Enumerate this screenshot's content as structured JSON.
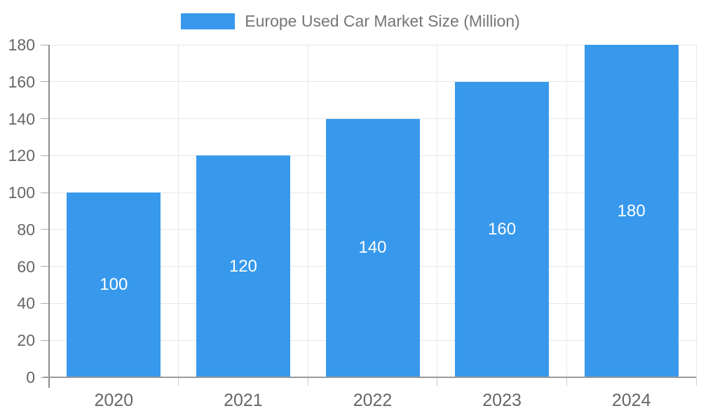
{
  "legend": {
    "label": "Europe Used Car Market Size (Million)"
  },
  "chart_data": {
    "type": "bar",
    "title": "Europe Used Car Market Size (Million)",
    "categories": [
      "2020",
      "2021",
      "2022",
      "2023",
      "2024"
    ],
    "values": [
      100,
      120,
      140,
      160,
      180
    ],
    "series": [
      {
        "name": "Europe Used Car Market Size (Million)",
        "values": [
          100,
          120,
          140,
          160,
          180
        ]
      }
    ],
    "xlabel": "",
    "ylabel": "",
    "ylim": [
      0,
      180
    ],
    "yticks": [
      0,
      20,
      40,
      60,
      80,
      100,
      120,
      140,
      160,
      180
    ],
    "legend_position": "top-center",
    "grid": true,
    "value_labels": "inside-center",
    "colors": {
      "bar": "#3899EC",
      "value_label": "#FFFFFF",
      "axis_text": "#666666",
      "title_text": "#757575",
      "gridline": "#E8E8E8",
      "boundary_tick": "#CCCCCC",
      "y_tick": "#ADADAD",
      "axis_line": "#9A9A9A"
    }
  }
}
